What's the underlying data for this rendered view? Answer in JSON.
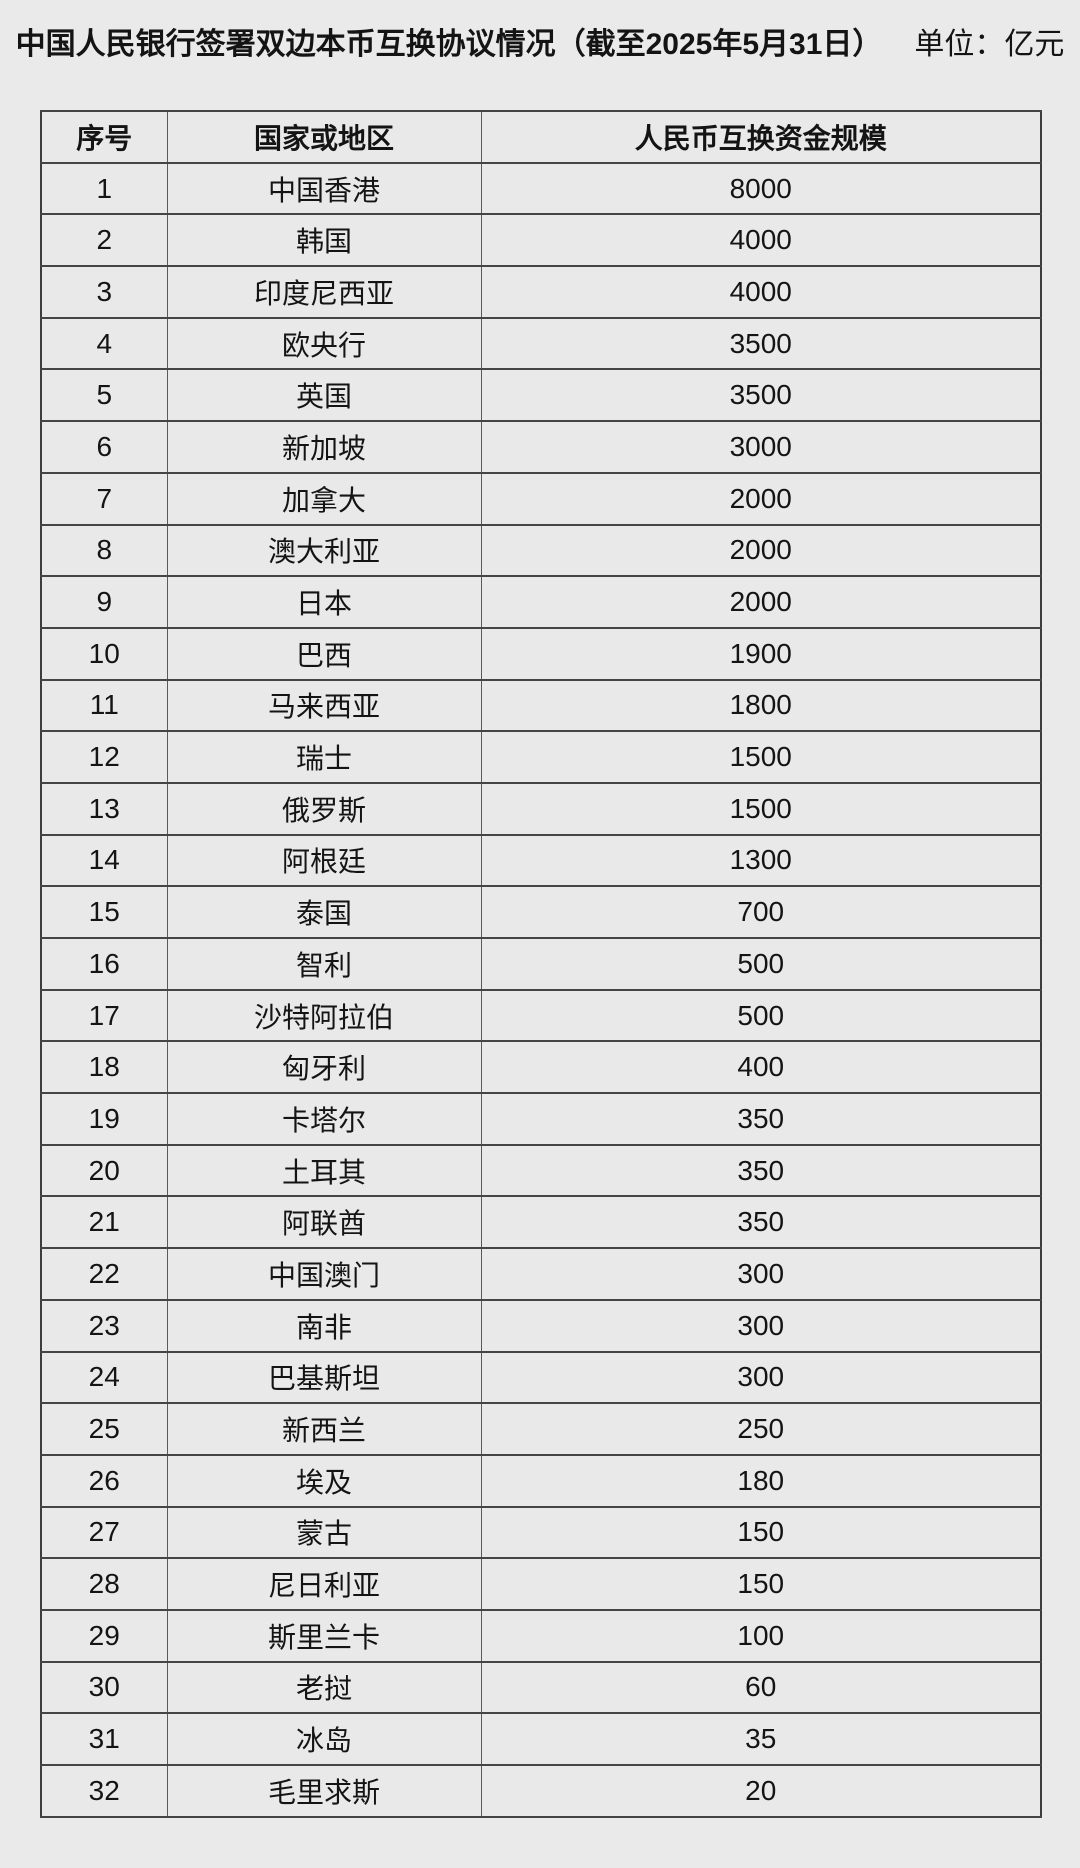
{
  "page_title": {
    "text": "中国人民银行签署双边本币互换协议情况（截至2025年5月31日）",
    "unit_label": "单位：亿元"
  },
  "colors": {
    "background": "#eaeaea",
    "cell_background": "#e9e9e9",
    "border": "#454545",
    "text": "#141414"
  },
  "chart_data": {
    "type": "table",
    "title": "中国人民银行签署双边本币互换协议情况（截至2025年5月31日）",
    "unit": "亿元",
    "columns": [
      "序号",
      "国家或地区",
      "人民币互换资金规模"
    ],
    "rows": [
      [
        1,
        "中国香港",
        8000
      ],
      [
        2,
        "韩国",
        4000
      ],
      [
        3,
        "印度尼西亚",
        4000
      ],
      [
        4,
        "欧央行",
        3500
      ],
      [
        5,
        "英国",
        3500
      ],
      [
        6,
        "新加坡",
        3000
      ],
      [
        7,
        "加拿大",
        2000
      ],
      [
        8,
        "澳大利亚",
        2000
      ],
      [
        9,
        "日本",
        2000
      ],
      [
        10,
        "巴西",
        1900
      ],
      [
        11,
        "马来西亚",
        1800
      ],
      [
        12,
        "瑞士",
        1500
      ],
      [
        13,
        "俄罗斯",
        1500
      ],
      [
        14,
        "阿根廷",
        1300
      ],
      [
        15,
        "泰国",
        700
      ],
      [
        16,
        "智利",
        500
      ],
      [
        17,
        "沙特阿拉伯",
        500
      ],
      [
        18,
        "匈牙利",
        400
      ],
      [
        19,
        "卡塔尔",
        350
      ],
      [
        20,
        "土耳其",
        350
      ],
      [
        21,
        "阿联酋",
        350
      ],
      [
        22,
        "中国澳门",
        300
      ],
      [
        23,
        "南非",
        300
      ],
      [
        24,
        "巴基斯坦",
        300
      ],
      [
        25,
        "新西兰",
        250
      ],
      [
        26,
        "埃及",
        180
      ],
      [
        27,
        "蒙古",
        150
      ],
      [
        28,
        "尼日利亚",
        150
      ],
      [
        29,
        "斯里兰卡",
        100
      ],
      [
        30,
        "老挝",
        60
      ],
      [
        31,
        "冰岛",
        35
      ],
      [
        32,
        "毛里求斯",
        20
      ]
    ]
  }
}
